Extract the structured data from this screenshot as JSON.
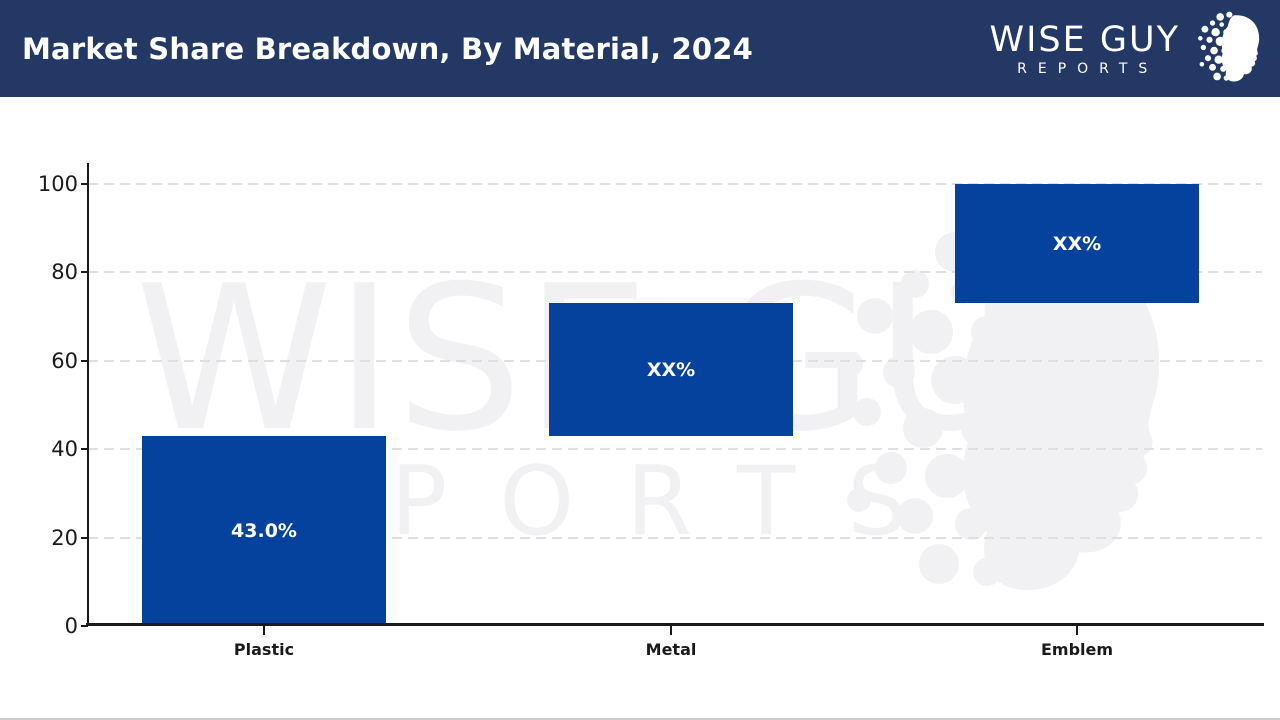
{
  "header": {
    "title": "Market Share Breakdown, By Material, 2024",
    "logo": {
      "line1": "WISE GUY",
      "line2": "REPORTS"
    }
  },
  "watermark": {
    "line1": "WISE GUY",
    "line2": "REPORTS"
  },
  "chart_data": {
    "type": "bar",
    "subtype": "waterfall",
    "title": "Market Share Breakdown, By Material, 2024",
    "categories": [
      "Plastic",
      "Metal",
      "Emblem"
    ],
    "bars": [
      {
        "category": "Plastic",
        "start": 0,
        "end": 43,
        "label": "43.0%"
      },
      {
        "category": "Metal",
        "start": 43,
        "end": 73,
        "label": "XX%"
      },
      {
        "category": "Emblem",
        "start": 73,
        "end": 100,
        "label": "XX%"
      }
    ],
    "xlabel": "",
    "ylabel": "",
    "ylim": [
      0,
      105
    ],
    "yticks": [
      0,
      20,
      40,
      60,
      80,
      100
    ],
    "grid": "horizontal-dashed",
    "legend": "none"
  },
  "theme": {
    "header_bg": "#233864",
    "bar_color": "#05429e",
    "value_label_color": "#ffffff",
    "grid_color": "#dfdfdf",
    "axis_color": "#1a1a1a",
    "watermark_color": "#f1f1f3",
    "bottom_line_color": "#cfcfcf"
  }
}
